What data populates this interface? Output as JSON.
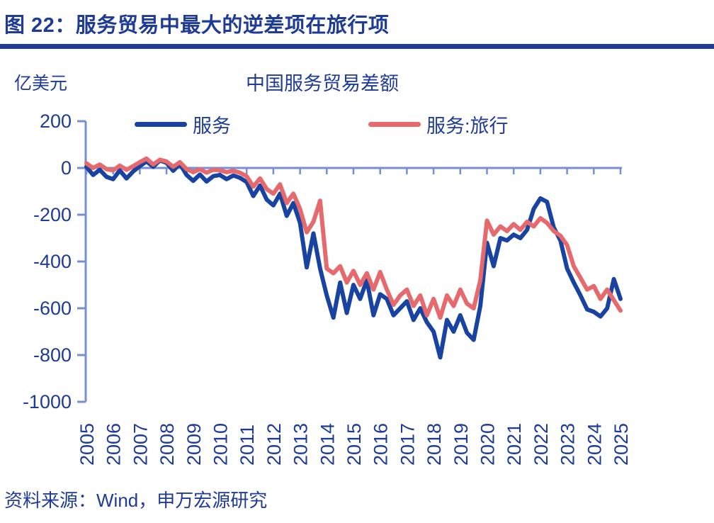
{
  "header": {
    "title": "图 22：服务贸易中最大的逆差项在旅行项"
  },
  "source": "资料来源：Wind，申万宏源研究",
  "colors": {
    "text_navy": "#1E3B96",
    "axis_blue": "#748FD6",
    "series_blue": "#1843A0",
    "series_red": "#E5696D"
  },
  "chart_data": {
    "type": "line",
    "title": "中国服务贸易差额",
    "unit_label": "亿美元",
    "xlabel": "",
    "ylabel": "亿美元",
    "ylim": [
      -1000,
      200
    ],
    "yticks": [
      200,
      0,
      -200,
      -400,
      -600,
      -800,
      -1000
    ],
    "grid": false,
    "legend_position": "top",
    "x_tick_years": [
      2005,
      2006,
      2007,
      2008,
      2009,
      2010,
      2011,
      2012,
      2013,
      2014,
      2015,
      2016,
      2017,
      2018,
      2019,
      2020,
      2021,
      2022,
      2023,
      2024,
      2025
    ],
    "x_frequency": "quarterly",
    "x_start": "2005Q1",
    "x_end": "2025Q1",
    "series": [
      {
        "name": "服务",
        "color": "#1843A0",
        "values": [
          5,
          -30,
          -8,
          -38,
          -48,
          -10,
          -45,
          -15,
          8,
          28,
          5,
          32,
          22,
          -12,
          18,
          -30,
          -55,
          -28,
          -58,
          -35,
          -30,
          -48,
          -32,
          -42,
          -60,
          -120,
          -75,
          -135,
          -160,
          -110,
          -205,
          -150,
          -235,
          -425,
          -280,
          -430,
          -545,
          -640,
          -490,
          -620,
          -500,
          -560,
          -480,
          -630,
          -540,
          -560,
          -630,
          -600,
          -570,
          -650,
          -600,
          -660,
          -700,
          -810,
          -650,
          -700,
          -630,
          -705,
          -735,
          -590,
          -320,
          -420,
          -300,
          -310,
          -285,
          -300,
          -265,
          -175,
          -130,
          -145,
          -255,
          -310,
          -430,
          -490,
          -545,
          -605,
          -615,
          -635,
          -600,
          -475,
          -560
        ]
      },
      {
        "name": "服务:旅行",
        "color": "#E5696D",
        "values": [
          20,
          0,
          15,
          -5,
          -10,
          10,
          -8,
          8,
          25,
          40,
          15,
          35,
          28,
          5,
          25,
          -5,
          -18,
          -5,
          -20,
          -8,
          -10,
          -18,
          -12,
          -20,
          -35,
          -80,
          -45,
          -90,
          -110,
          -70,
          -150,
          -110,
          -175,
          -275,
          -230,
          -140,
          -430,
          -450,
          -420,
          -490,
          -440,
          -500,
          -450,
          -520,
          -445,
          -520,
          -585,
          -545,
          -520,
          -590,
          -545,
          -630,
          -560,
          -640,
          -545,
          -590,
          -520,
          -580,
          -600,
          -480,
          -225,
          -285,
          -250,
          -270,
          -240,
          -265,
          -230,
          -250,
          -215,
          -235,
          -270,
          -290,
          -330,
          -420,
          -470,
          -520,
          -505,
          -560,
          -520,
          -565,
          -610
        ]
      }
    ]
  }
}
